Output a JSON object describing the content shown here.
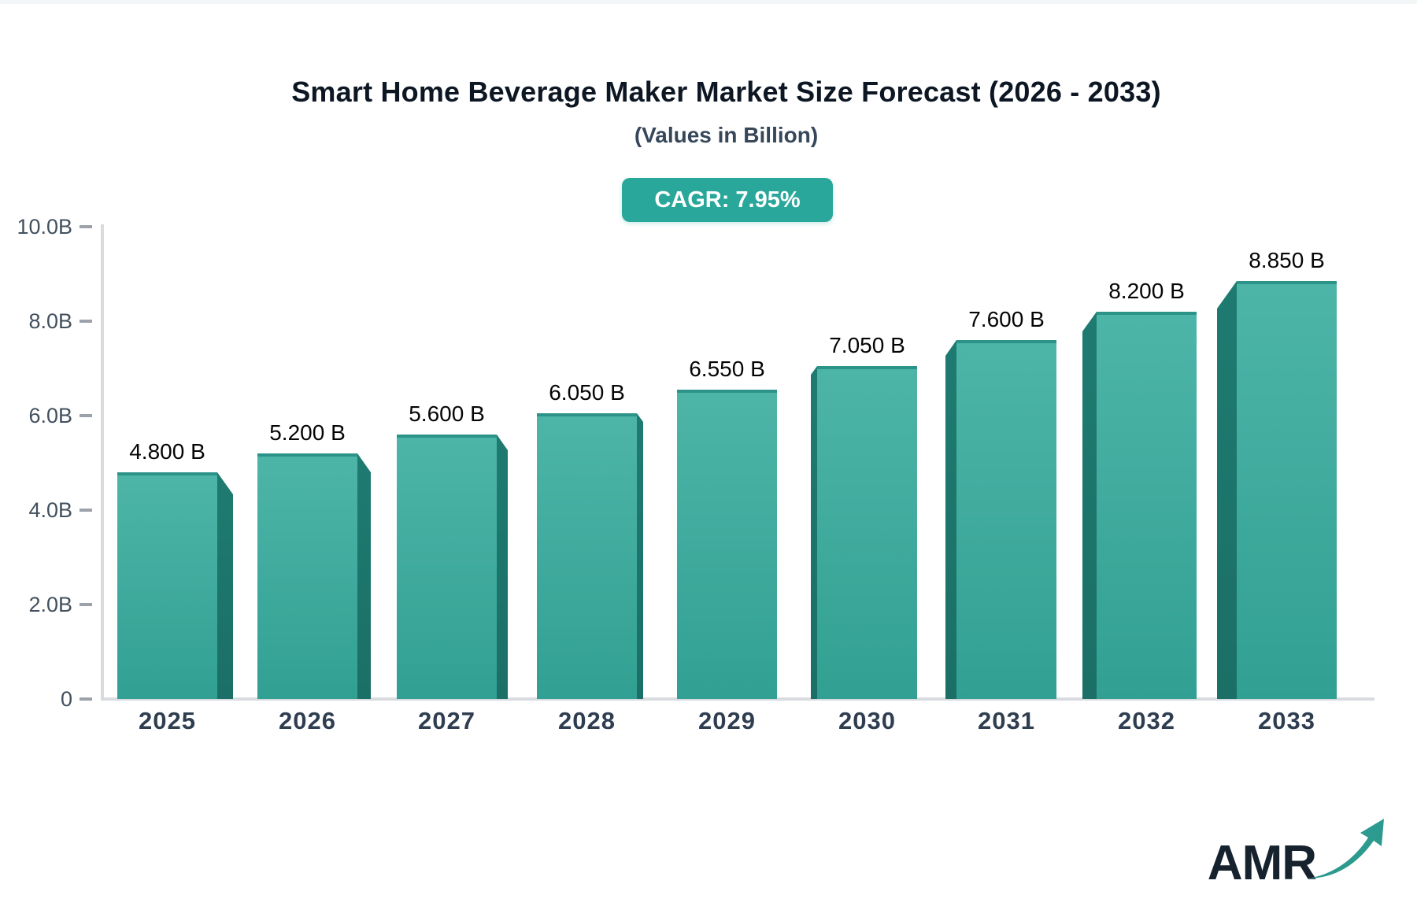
{
  "header": {
    "title": "Smart Home Beverage Maker Market Size Forecast (2026 - 2033)",
    "subtitle": "(Values in Billion)",
    "cagr_label": "CAGR: 7.95%",
    "cagr_bg": "#2aa79b"
  },
  "chart_data": {
    "type": "bar",
    "title": "Smart Home Beverage Maker Market Size Forecast (2026 - 2033)",
    "subtitle": "(Values in Billion)",
    "annotation": "CAGR: 7.95%",
    "categories": [
      "2025",
      "2026",
      "2027",
      "2028",
      "2029",
      "2030",
      "2031",
      "2032",
      "2033"
    ],
    "values": [
      4.8,
      5.2,
      5.6,
      6.05,
      6.55,
      7.05,
      7.6,
      8.2,
      8.85
    ],
    "value_labels": [
      "4.800 B",
      "5.200 B",
      "5.600 B",
      "6.050 B",
      "6.550 B",
      "7.050 B",
      "7.600 B",
      "8.200 B",
      "8.850 B"
    ],
    "unit": "Billion USD",
    "xlabel": "",
    "ylabel": "",
    "ylim": [
      0,
      10
    ],
    "yticks": [
      {
        "label": "10.0B",
        "value": 10
      },
      {
        "label": "8.0B",
        "value": 8
      },
      {
        "label": "6.0B",
        "value": 6
      },
      {
        "label": "4.0B",
        "value": 4
      },
      {
        "label": "2.0B",
        "value": 2
      },
      {
        "label": "0",
        "value": 0
      }
    ],
    "grid": false,
    "legend_position": "none",
    "colors": {
      "bar_face_top": "#4db5a8",
      "bar_face_bottom": "#31a093",
      "bar_top_edge": "#2b9388",
      "bar_side": "#1e7b71",
      "axis_line": "#d8dbe0",
      "tick": "#9ba2aa",
      "tick_label": "#42505e",
      "category_label": "#2e3d4f",
      "value_label": "#050505"
    }
  },
  "logo": {
    "text": "AMR",
    "arrow_icon": "trend-up-arrow",
    "text_color": "#16222d",
    "accent_color": "#2d9a8f"
  }
}
